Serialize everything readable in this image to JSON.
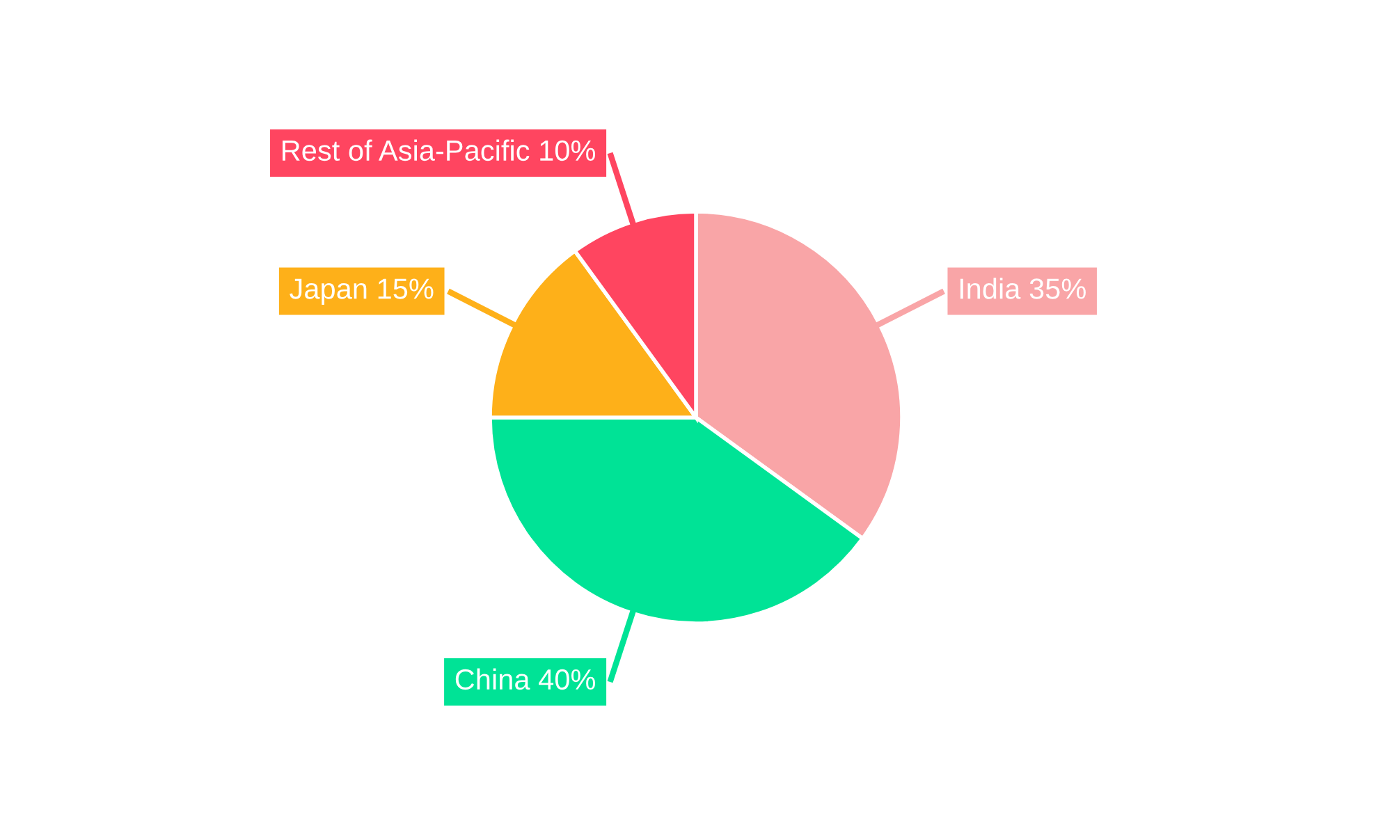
{
  "chart_data": {
    "type": "pie",
    "categories": [
      "India",
      "China",
      "Japan",
      "Rest of Asia-Pacific"
    ],
    "values": [
      35,
      40,
      15,
      10
    ],
    "colors": [
      "#f9a5a7",
      "#00e396",
      "#feb019",
      "#ff4560"
    ],
    "value_labels": [
      "35%",
      "40%",
      "15%",
      "10%"
    ]
  }
}
